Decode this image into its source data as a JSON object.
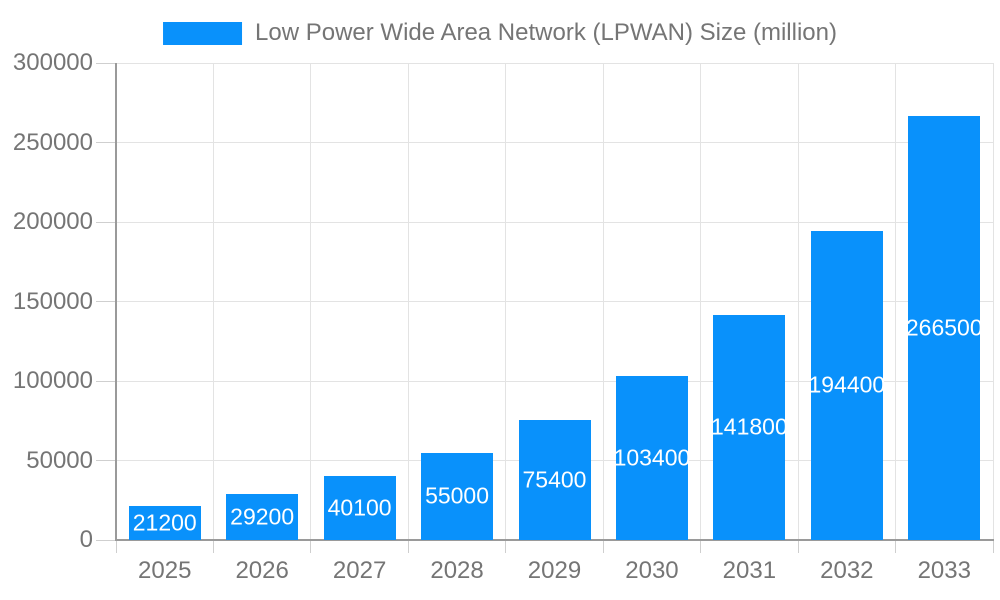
{
  "chart_data": {
    "type": "bar",
    "title": "Low Power Wide Area Network (LPWAN) Size (million)",
    "categories": [
      "2025",
      "2026",
      "2027",
      "2028",
      "2029",
      "2030",
      "2031",
      "2032",
      "2033"
    ],
    "series": [
      {
        "name": "Low Power Wide Area Network (LPWAN) Size (million)",
        "values": [
          21200,
          29200,
          40100,
          55000,
          75400,
          103400,
          141800,
          194400,
          266500
        ]
      }
    ],
    "value_labels": [
      "21200",
      "29200",
      "40100",
      "55000",
      "75400",
      "103400",
      "141800",
      "194400",
      "266500"
    ],
    "xlabel": "",
    "ylabel": "",
    "ylim": [
      0,
      300000
    ],
    "ytick_step": 50000,
    "ytick_labels": [
      "0",
      "50000",
      "100000",
      "150000",
      "200000",
      "250000",
      "300000"
    ],
    "grid": true,
    "legend_position": "top-center",
    "value_label_style": "white, centered inside bar"
  },
  "colors": {
    "bar": "#0991fb",
    "label_text": "#757575",
    "axis_line": "#9a9a9a",
    "gridline": "#e3e3e3",
    "tick_mark": "#cfcfcf",
    "background": "#ffffff",
    "value_text": "#ffffff"
  }
}
